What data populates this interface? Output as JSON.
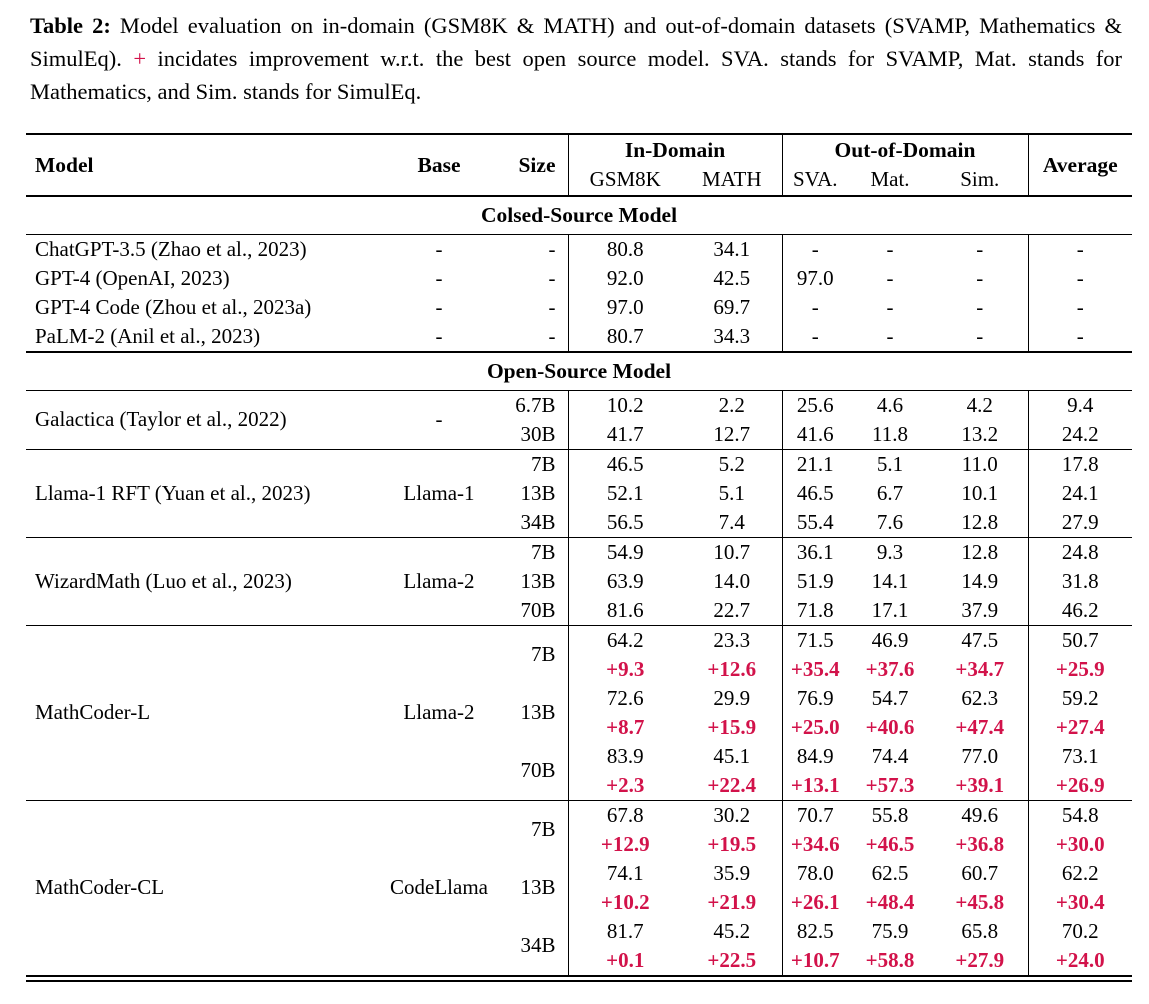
{
  "colors": {
    "accent_red": "#d2124a",
    "text": "#000000",
    "background": "#ffffff"
  },
  "caption": {
    "label": "Table 2:",
    "before_plus": " Model evaluation on in-domain (GSM8K & MATH) and out-of-domain datasets (SVAMP, Mathematics & SimulEq). ",
    "plus": "+",
    "after_plus": " incidates improvement w.r.t. the best open source model. SVA. stands for SVAMP, Mat. stands for Mathematics, and Sim. stands for SimulEq."
  },
  "table": {
    "columns": {
      "model": "Model",
      "base": "Base",
      "size": "Size",
      "in_domain": "In-Domain",
      "in_domain_sub": [
        "GSM8K",
        "MATH"
      ],
      "out_domain": "Out-of-Domain",
      "out_domain_sub": [
        "SVA.",
        "Mat.",
        "Sim."
      ],
      "average": "Average"
    },
    "sections": [
      {
        "title": "Colsed-Source Model",
        "groups": [
          {
            "model": "ChatGPT-3.5 (Zhao et al., 2023)",
            "base": "-",
            "rows": [
              {
                "size": "-",
                "values": [
                  "80.8",
                  "34.1",
                  "-",
                  "-",
                  "-",
                  "-"
                ]
              }
            ]
          },
          {
            "model": "GPT-4 (OpenAI, 2023)",
            "base": "-",
            "rows": [
              {
                "size": "-",
                "values": [
                  "92.0",
                  "42.5",
                  "97.0",
                  "-",
                  "-",
                  "-"
                ]
              }
            ]
          },
          {
            "model": "GPT-4 Code (Zhou et al., 2023a)",
            "base": "-",
            "rows": [
              {
                "size": "-",
                "values": [
                  "97.0",
                  "69.7",
                  "-",
                  "-",
                  "-",
                  "-"
                ]
              }
            ]
          },
          {
            "model": "PaLM-2 (Anil et al., 2023)",
            "base": "-",
            "rows": [
              {
                "size": "-",
                "values": [
                  "80.7",
                  "34.3",
                  "-",
                  "-",
                  "-",
                  "-"
                ]
              }
            ]
          }
        ]
      },
      {
        "title": "Open-Source Model",
        "groups": [
          {
            "model": "Galactica (Taylor et al., 2022)",
            "base": "-",
            "rows": [
              {
                "size": "6.7B",
                "values": [
                  "10.2",
                  "2.2",
                  "25.6",
                  "4.6",
                  "4.2",
                  "9.4"
                ]
              },
              {
                "size": "30B",
                "values": [
                  "41.7",
                  "12.7",
                  "41.6",
                  "11.8",
                  "13.2",
                  "24.2"
                ]
              }
            ]
          },
          {
            "model": "Llama-1 RFT (Yuan et al., 2023)",
            "base": "Llama-1",
            "rows": [
              {
                "size": "7B",
                "values": [
                  "46.5",
                  "5.2",
                  "21.1",
                  "5.1",
                  "11.0",
                  "17.8"
                ]
              },
              {
                "size": "13B",
                "values": [
                  "52.1",
                  "5.1",
                  "46.5",
                  "6.7",
                  "10.1",
                  "24.1"
                ]
              },
              {
                "size": "34B",
                "values": [
                  "56.5",
                  "7.4",
                  "55.4",
                  "7.6",
                  "12.8",
                  "27.9"
                ]
              }
            ]
          },
          {
            "model": "WizardMath (Luo et al., 2023)",
            "base": "Llama-2",
            "rows": [
              {
                "size": "7B",
                "values": [
                  "54.9",
                  "10.7",
                  "36.1",
                  "9.3",
                  "12.8",
                  "24.8"
                ]
              },
              {
                "size": "13B",
                "values": [
                  "63.9",
                  "14.0",
                  "51.9",
                  "14.1",
                  "14.9",
                  "31.8"
                ]
              },
              {
                "size": "70B",
                "values": [
                  "81.6",
                  "22.7",
                  "71.8",
                  "17.1",
                  "37.9",
                  "46.2"
                ]
              }
            ]
          },
          {
            "model": "MathCoder-L",
            "base": "Llama-2",
            "rows": [
              {
                "size": "7B",
                "values": [
                  "64.2",
                  "23.3",
                  "71.5",
                  "46.9",
                  "47.5",
                  "50.7"
                ],
                "delta": [
                  "+9.3",
                  "+12.6",
                  "+35.4",
                  "+37.6",
                  "+34.7",
                  "+25.9"
                ]
              },
              {
                "size": "13B",
                "values": [
                  "72.6",
                  "29.9",
                  "76.9",
                  "54.7",
                  "62.3",
                  "59.2"
                ],
                "delta": [
                  "+8.7",
                  "+15.9",
                  "+25.0",
                  "+40.6",
                  "+47.4",
                  "+27.4"
                ]
              },
              {
                "size": "70B",
                "values": [
                  "83.9",
                  "45.1",
                  "84.9",
                  "74.4",
                  "77.0",
                  "73.1"
                ],
                "delta": [
                  "+2.3",
                  "+22.4",
                  "+13.1",
                  "+57.3",
                  "+39.1",
                  "+26.9"
                ]
              }
            ]
          },
          {
            "model": "MathCoder-CL",
            "base": "CodeLlama",
            "rows": [
              {
                "size": "7B",
                "values": [
                  "67.8",
                  "30.2",
                  "70.7",
                  "55.8",
                  "49.6",
                  "54.8"
                ],
                "delta": [
                  "+12.9",
                  "+19.5",
                  "+34.6",
                  "+46.5",
                  "+36.8",
                  "+30.0"
                ]
              },
              {
                "size": "13B",
                "values": [
                  "74.1",
                  "35.9",
                  "78.0",
                  "62.5",
                  "60.7",
                  "62.2"
                ],
                "delta": [
                  "+10.2",
                  "+21.9",
                  "+26.1",
                  "+48.4",
                  "+45.8",
                  "+30.4"
                ]
              },
              {
                "size": "34B",
                "values": [
                  "81.7",
                  "45.2",
                  "82.5",
                  "75.9",
                  "65.8",
                  "70.2"
                ],
                "delta": [
                  "+0.1",
                  "+22.5",
                  "+10.7",
                  "+58.8",
                  "+27.9",
                  "+24.0"
                ]
              }
            ]
          }
        ]
      }
    ]
  }
}
